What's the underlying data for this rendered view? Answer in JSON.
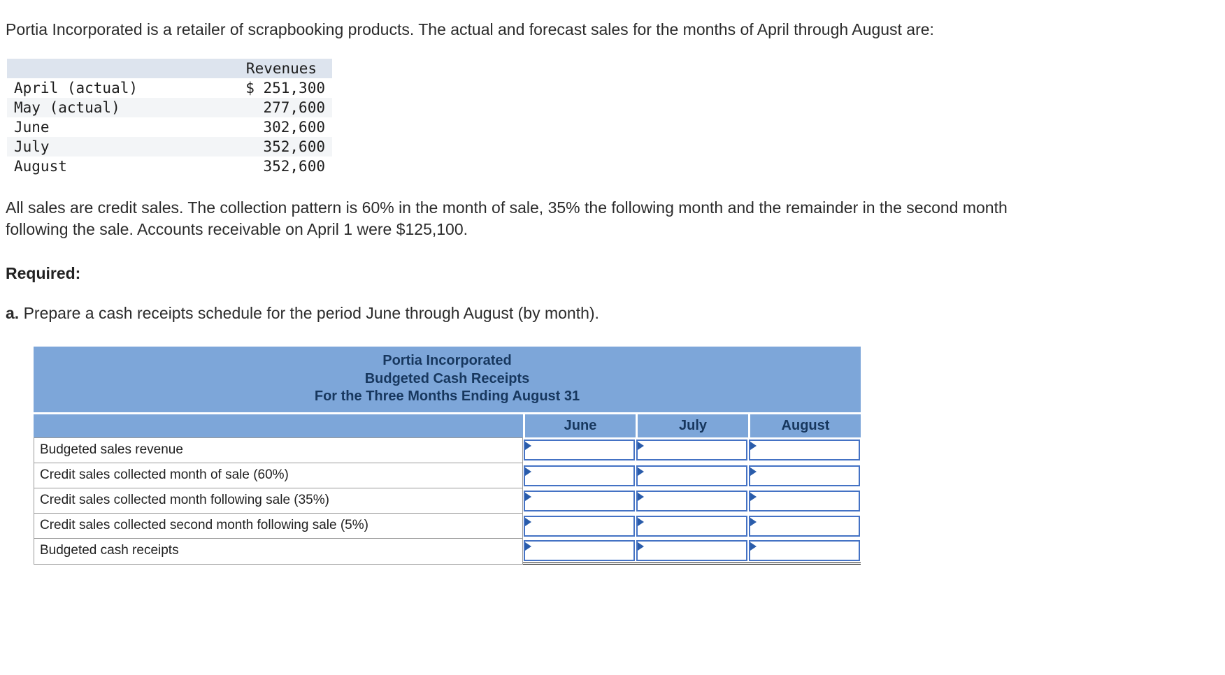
{
  "colors": {
    "worksheet_header_blue": "#7da6d9",
    "worksheet_title_text": "#17375e",
    "input_cell_border": "#4472c4",
    "input_marker": "#2a5caa",
    "revenues_header_bg": "#dde4ee",
    "revenues_alt_row_bg": "#f3f5f7",
    "total_rule": "#1a1a1a"
  },
  "intro": "Portia Incorporated is a retailer of scrapbooking products. The actual and forecast sales for the months of April through August are:",
  "revenues_table": {
    "header": "Revenues",
    "rows": [
      {
        "label": "April (actual)",
        "value": "$ 251,300"
      },
      {
        "label": "May (actual)",
        "value": "277,600"
      },
      {
        "label": "June",
        "value": "302,600"
      },
      {
        "label": "July",
        "value": "352,600"
      },
      {
        "label": "August",
        "value": "352,600"
      }
    ]
  },
  "body_text": "All sales are credit sales. The collection pattern is 60% in the month of sale, 35% the following month and the remainder in the second month following the sale. Accounts receivable on April 1 were $125,100.",
  "required_label": "Required:",
  "part_a": {
    "prefix": "a.",
    "text": "Prepare a cash receipts schedule for the period June through August (by month)."
  },
  "worksheet": {
    "title_lines": [
      "Portia Incorporated",
      "Budgeted Cash Receipts",
      "For the Three Months Ending August 31"
    ],
    "columns": [
      "June",
      "July",
      "August"
    ],
    "rows": [
      {
        "label": "Budgeted sales revenue",
        "values": [
          "",
          "",
          ""
        ]
      },
      {
        "label": "Credit sales collected month of sale (60%)",
        "values": [
          "",
          "",
          ""
        ]
      },
      {
        "label": "Credit sales collected month following sale (35%)",
        "values": [
          "",
          "",
          ""
        ]
      },
      {
        "label": "Credit sales collected second month following sale (5%)",
        "values": [
          "",
          "",
          ""
        ]
      },
      {
        "label": "Budgeted cash receipts",
        "values": [
          "",
          "",
          ""
        ]
      }
    ]
  }
}
